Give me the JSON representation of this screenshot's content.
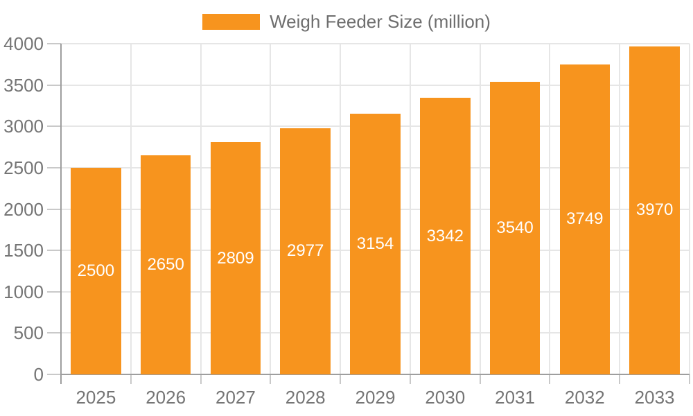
{
  "legend": {
    "label": "Weigh Feeder Size (million)"
  },
  "colors": {
    "bar": "#F7941E",
    "grid": "#E6E6E6",
    "axis": "#9E9E9E",
    "tick": "#C9C9C9",
    "axis_text": "#757575",
    "legend_text": "#6E6E6E",
    "value_text": "#FFFFFF",
    "background": "#FFFFFF"
  },
  "chart_data": {
    "type": "bar",
    "title": "",
    "series_name": "Weigh Feeder Size (million)",
    "categories": [
      "2025",
      "2026",
      "2027",
      "2028",
      "2029",
      "2030",
      "2031",
      "2032",
      "2033"
    ],
    "values": [
      2500,
      2650,
      2809,
      2977,
      3154,
      3342,
      3540,
      3749,
      3970
    ],
    "value_labels": [
      "2500",
      "2650",
      "2809",
      "2977",
      "3154",
      "3342",
      "3540",
      "3749",
      "3970"
    ],
    "xlabel": "",
    "ylabel": "",
    "ylim": [
      0,
      4000
    ],
    "yticks": [
      0,
      500,
      1000,
      1500,
      2000,
      2500,
      3000,
      3500,
      4000
    ],
    "ytick_labels": [
      "0",
      "500",
      "1000",
      "1500",
      "2000",
      "2500",
      "3000",
      "3500",
      "4000"
    ],
    "grid": true,
    "legend_position": "top",
    "value_label_position": "inside-center"
  }
}
